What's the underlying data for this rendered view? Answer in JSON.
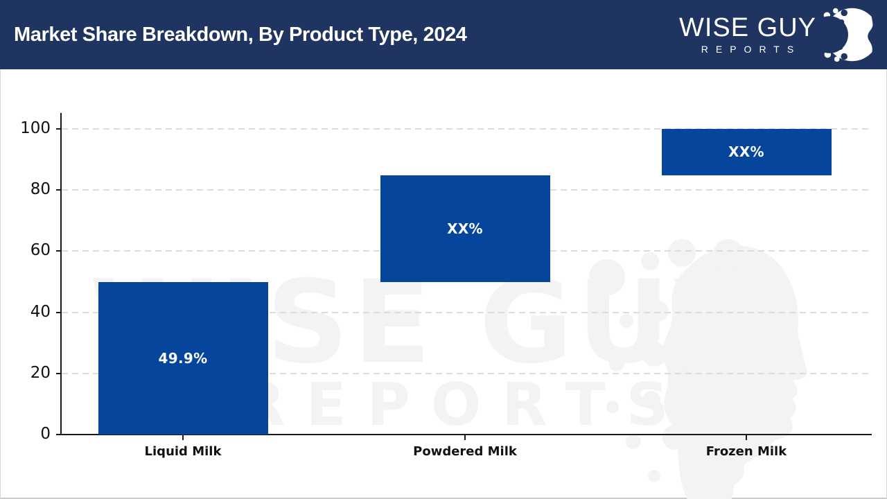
{
  "header": {
    "title": "Market Share Breakdown, By Product Type, 2024",
    "logo": {
      "line1": "WISE GUY",
      "line2": "REPORTS"
    }
  },
  "watermark": {
    "line1": "WISE GUY",
    "line2": "REPORTS"
  },
  "chart_data": {
    "type": "bar",
    "subtype": "floating-stacked-waterfall",
    "title": "Market Share Breakdown, By Product Type, 2024",
    "categories": [
      "Liquid Milk",
      "Powdered Milk",
      "Frozen Milk"
    ],
    "segments": [
      {
        "category": "Liquid Milk",
        "start": 0,
        "end": 49.9,
        "label": "49.9%"
      },
      {
        "category": "Powdered Milk",
        "start": 49.9,
        "end": 84.9,
        "label": "XX%"
      },
      {
        "category": "Frozen Milk",
        "start": 84.9,
        "end": 100,
        "label": "XX%"
      }
    ],
    "xlabel": "",
    "ylabel": "",
    "yticks": [
      0,
      20,
      40,
      60,
      80,
      100
    ],
    "ylim": [
      0,
      105
    ],
    "grid": "horizontal-dashed",
    "legend": "none",
    "bar_color": "#05459b",
    "value_label_color": "#ffffff"
  }
}
